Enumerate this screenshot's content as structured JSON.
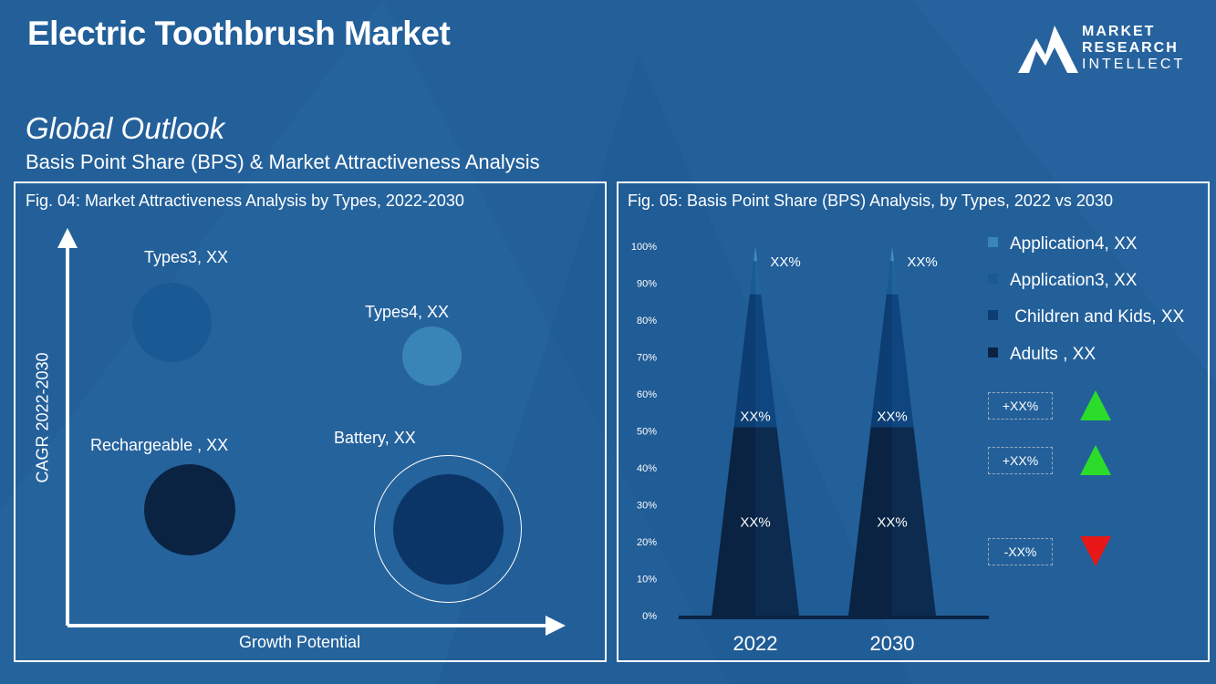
{
  "page": {
    "title": "Electric Toothbrush Market",
    "outlook": "Global Outlook",
    "subtitle": "Basis Point Share (BPS) & Market Attractiveness  Analysis"
  },
  "logo": {
    "line1": "MARKET",
    "line2": "RESEARCH",
    "line3": "INTELLECT"
  },
  "colors": {
    "background": "#23609a",
    "adults": "#0a2a4f",
    "children": "#0c3d73",
    "app3": "#1a5a94",
    "app4": "#3a85b7",
    "up": "#2bdc2b",
    "down": "#e81818"
  },
  "chart_data": [
    {
      "type": "scatter",
      "title": "Fig. 04: Market Attractiveness Analysis by Types, 2022-2030",
      "xlabel": "Growth Potential",
      "ylabel": "CAGR 2022-2030",
      "points": [
        {
          "label": "Types3, XX",
          "color": "#1a5a94"
        },
        {
          "label": "Types4, XX",
          "color": "#3a85b7"
        },
        {
          "label": "Rechargeable , XX",
          "color": "#0a2342"
        },
        {
          "label": "Battery, XX",
          "color": "#0b3566"
        }
      ]
    },
    {
      "type": "bar",
      "title": "Fig. 05: Basis Point Share (BPS) Analysis, by Types,  2022 vs 2030",
      "categories": [
        "2022",
        "2030"
      ],
      "yticks": [
        "0%",
        "10%",
        "20%",
        "30%",
        "40%",
        "50%",
        "60%",
        "70%",
        "80%",
        "90%",
        "100%"
      ],
      "ylim": [
        0,
        100
      ],
      "series": [
        {
          "name": "Adults , XX",
          "values": [
            51,
            51
          ],
          "label": "XX%"
        },
        {
          "name": " Children and Kids, XX",
          "values": [
            36,
            36
          ],
          "label": "XX%"
        },
        {
          "name": "Application3, XX",
          "values": [
            9,
            9
          ],
          "label": "XX%"
        },
        {
          "name": "Application4, XX",
          "values": [
            4,
            4
          ],
          "label": ""
        }
      ],
      "changes": [
        {
          "label": "+XX%",
          "direction": "up"
        },
        {
          "label": "+XX%",
          "direction": "up"
        },
        {
          "label": "-XX%",
          "direction": "down"
        }
      ]
    }
  ]
}
